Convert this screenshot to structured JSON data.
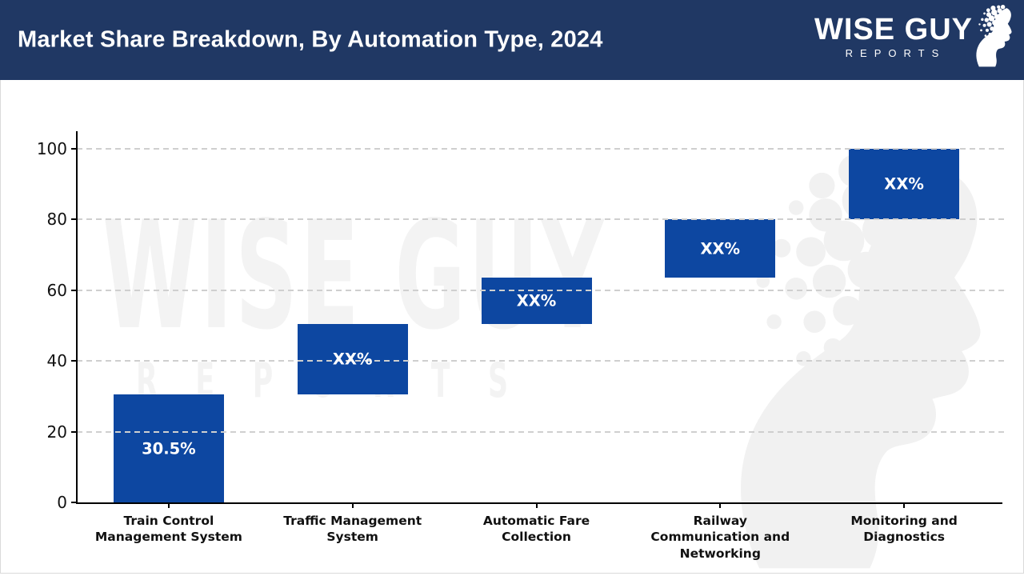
{
  "header": {
    "title": "Market Share Breakdown, By Automation Type, 2024",
    "brand_line1": "WISE GUY",
    "brand_line2": "REPORTS",
    "bg_color": "#203864"
  },
  "watermark": {
    "line1": "WISE GUY",
    "line2": "REPORTS"
  },
  "chart_data": {
    "type": "bar",
    "subtype": "waterfall",
    "title": "Market Share Breakdown, By Automation Type, 2024",
    "xlabel": "",
    "ylabel": "",
    "categories": [
      "Train Control\nManagement System",
      "Traffic Management\nSystem",
      "Automatic Fare\nCollection",
      "Railway\nCommunication and\nNetworking",
      "Monitoring and\nDiagnostics"
    ],
    "segments": [
      {
        "category": "Train Control Management System",
        "start": 0,
        "end": 30.5,
        "label": "30.5%"
      },
      {
        "category": "Traffic Management System",
        "start": 30.5,
        "end": 50.5,
        "label": "XX%"
      },
      {
        "category": "Automatic Fare Collection",
        "start": 50.5,
        "end": 63.5,
        "label": "XX%"
      },
      {
        "category": "Railway Communication and Networking",
        "start": 63.5,
        "end": 80,
        "label": "XX%"
      },
      {
        "category": "Monitoring and Diagnostics",
        "start": 80,
        "end": 100,
        "label": "XX%"
      }
    ],
    "ylim": [
      0,
      100
    ],
    "yticks": [
      0,
      20,
      40,
      60,
      80,
      100
    ],
    "grid": "dashed-horizontal-over-bars",
    "legend": "none",
    "bar_color": "#0d47a1",
    "bar_label_color": "#ffffff",
    "axis_color": "#000000",
    "gridline_color": "#cfcfcf"
  }
}
